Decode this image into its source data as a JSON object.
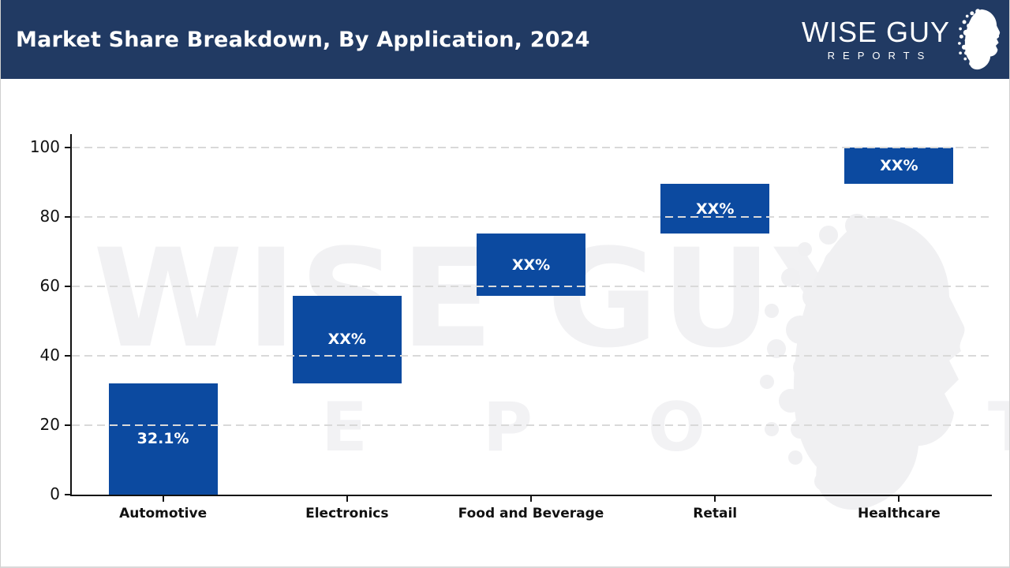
{
  "header": {
    "title": "Market Share Breakdown, By Application, 2024",
    "logo": {
      "line1": "WISE GUY",
      "line2": "REPORTS"
    }
  },
  "watermark": {
    "line1": "WISE GUY",
    "line2": "R E P O R T S"
  },
  "chart_data": {
    "type": "bar",
    "subtype": "waterfall",
    "title": "Market Share Breakdown, By Application, 2024",
    "xlabel": "",
    "ylabel": "",
    "categories": [
      "Automotive",
      "Electronics",
      "Food and Beverage",
      "Retail",
      "Healthcare"
    ],
    "segments": [
      {
        "category": "Automotive",
        "start": 0,
        "end": 32.1,
        "value": 32.1,
        "label": "32.1%"
      },
      {
        "category": "Electronics",
        "start": 32.1,
        "end": 57.4,
        "value": 25.3,
        "label": "XX%"
      },
      {
        "category": "Food and Beverage",
        "start": 57.4,
        "end": 75.2,
        "value": 17.8,
        "label": "XX%"
      },
      {
        "category": "Retail",
        "start": 75.2,
        "end": 89.7,
        "value": 14.5,
        "label": "XX%"
      },
      {
        "category": "Healthcare",
        "start": 89.7,
        "end": 100,
        "value": 10.3,
        "label": "XX%"
      }
    ],
    "yticks": [
      0,
      20,
      40,
      60,
      80,
      100
    ],
    "ylim": [
      0,
      100
    ],
    "grid": true,
    "grid_style": "dashed",
    "legend": false,
    "bar_color": "#0c4aa0"
  },
  "colors": {
    "header_bg": "#213a63",
    "bar": "#0c4aa0",
    "grid": "#d9d9d9",
    "axis": "#111111",
    "watermark": "#f1f1f3"
  }
}
